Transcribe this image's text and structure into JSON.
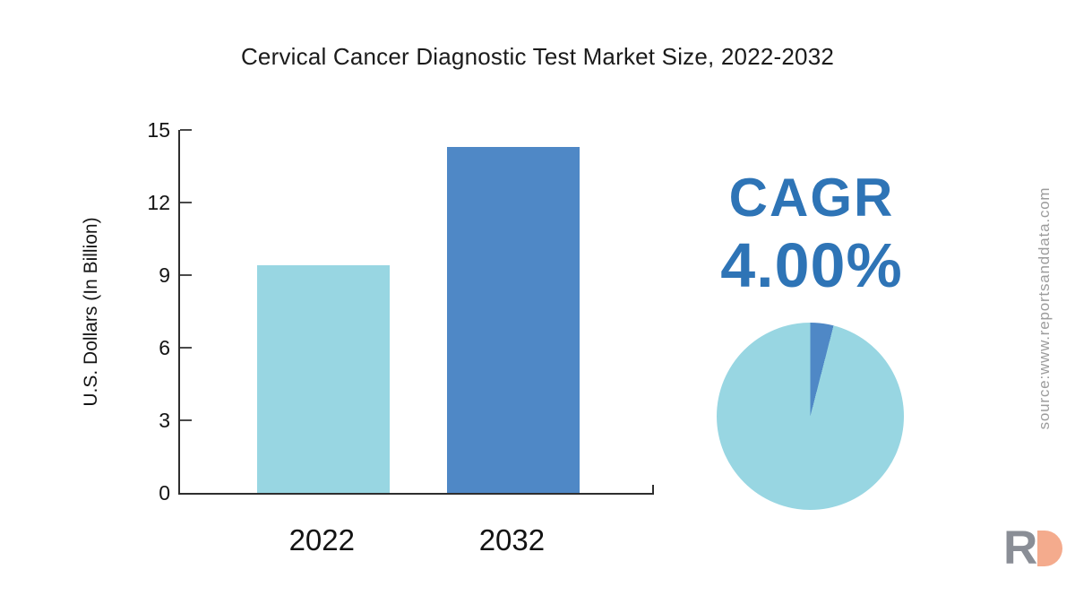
{
  "page": {
    "title": "Cervical Cancer Diagnostic Test Market Size, 2022-2032",
    "source_watermark": "source:www.reportsanddata.com",
    "logo_letter": "R"
  },
  "chart_data": {
    "type": "bar",
    "title": "Cervical Cancer Diagnostic Test Market Size, 2022-2032",
    "categories": [
      "2022",
      "2032"
    ],
    "values": [
      9.4,
      14.3
    ],
    "xlabel": "",
    "ylabel": "U.S. Dollars (In Billion)",
    "ylim": [
      0,
      15
    ],
    "yticks": [
      0,
      3,
      6,
      9,
      12,
      15
    ],
    "bar_colors": [
      "#98d6e2",
      "#4f88c6"
    ],
    "grid": false
  },
  "cagr": {
    "label": "CAGR",
    "value": "4.00%",
    "text_color": "#2e74b6",
    "pie": {
      "type": "pie",
      "slice_pct": 4,
      "slice_color": "#4f88c6",
      "rest_color": "#98d6e2"
    }
  },
  "colors": {
    "axis": "#2e2e2e",
    "text": "#141414",
    "source_text": "#9c9c9c",
    "logo_gray": "#8a8e96",
    "logo_salmon": "#f4ab8d"
  }
}
